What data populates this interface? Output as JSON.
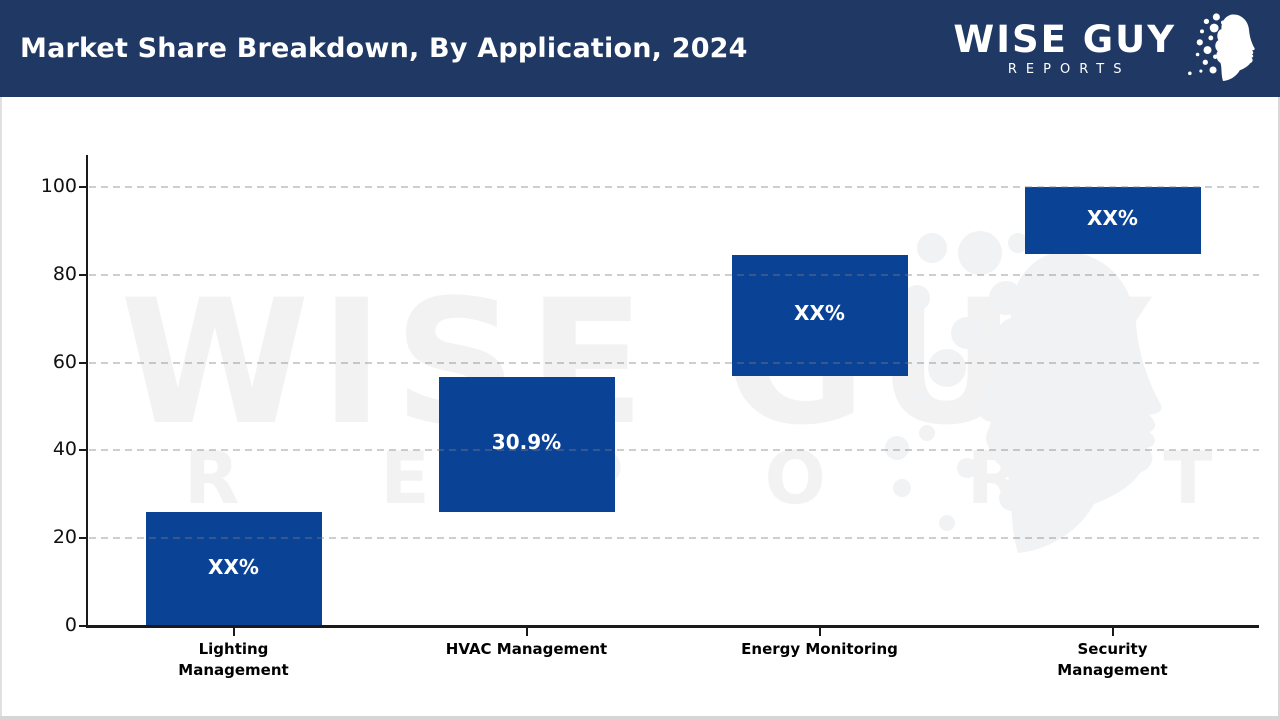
{
  "header": {
    "title": "Market Share Breakdown, By Application, 2024",
    "logo": {
      "name_line": "WISE GUY",
      "sub_line": "REPORTS"
    }
  },
  "watermark": {
    "name_line": "WISE GUY",
    "sub_line": "REPORTS"
  },
  "chart_data": {
    "type": "bar",
    "subtype": "floating-waterfall-segments",
    "title": "Market Share Breakdown, By Application, 2024",
    "categories": [
      "Lighting\nManagement",
      "HVAC Management",
      "Energy Monitoring",
      "Security\nManagement"
    ],
    "series": [
      {
        "category": "Lighting Management",
        "from": 0,
        "to": 25.9,
        "label": "XX%"
      },
      {
        "category": "HVAC Management",
        "from": 25.9,
        "to": 56.8,
        "label": "30.9%"
      },
      {
        "category": "Energy Monitoring",
        "from": 57.0,
        "to": 84.5,
        "label": "XX%"
      },
      {
        "category": "Security Management",
        "from": 84.8,
        "to": 100,
        "label": "XX%"
      }
    ],
    "xlabel": "",
    "ylabel": "",
    "yticks": [
      0,
      20,
      40,
      60,
      80,
      100
    ],
    "ylim": [
      0,
      107
    ],
    "grid": "horizontal-dashed",
    "legend": "none",
    "colors": {
      "bar": "#0a4296",
      "bar_label": "#ffffff",
      "axis": "#1a1a1a",
      "grid_on_white": "#d4d4d4",
      "header_bg": "#203864",
      "header_text": "#ffffff",
      "watermark": "#f2f2f2"
    }
  }
}
